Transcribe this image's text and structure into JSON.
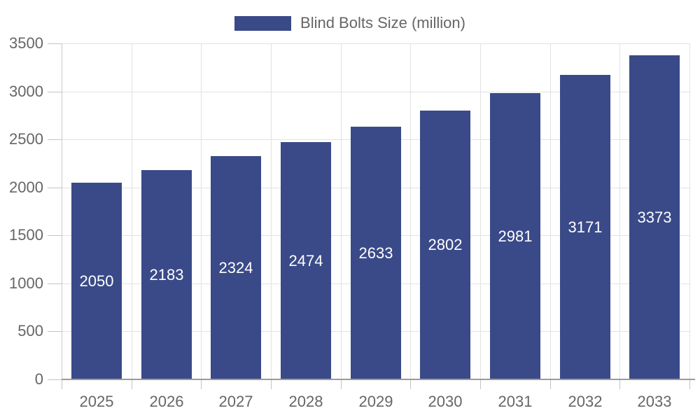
{
  "legend": {
    "label": "Blind Bolts Size (million)"
  },
  "chart_data": {
    "type": "bar",
    "title": "Blind Bolts Size (million)",
    "categories": [
      "2025",
      "2026",
      "2027",
      "2028",
      "2029",
      "2030",
      "2031",
      "2032",
      "2033"
    ],
    "values": [
      2050,
      2183,
      2324,
      2474,
      2633,
      2802,
      2981,
      3171,
      3373
    ],
    "xlabel": "",
    "ylabel": "",
    "ylim": [
      0,
      3500
    ],
    "ytick_step": 500,
    "ytick_labels": [
      "0",
      "500",
      "1000",
      "1500",
      "2000",
      "2500",
      "3000",
      "3500"
    ],
    "grid": "on",
    "legend_position": "top-center",
    "value_labels": "inside-center",
    "colors": {
      "bar": "#3a4a88",
      "bar_label": "#ffffff",
      "axis_text": "#666666",
      "grid_line": "#e2e2e2",
      "axis_line": "#9a9a9a",
      "tick_line": "#c4c4c8",
      "background": "#ffffff"
    }
  }
}
